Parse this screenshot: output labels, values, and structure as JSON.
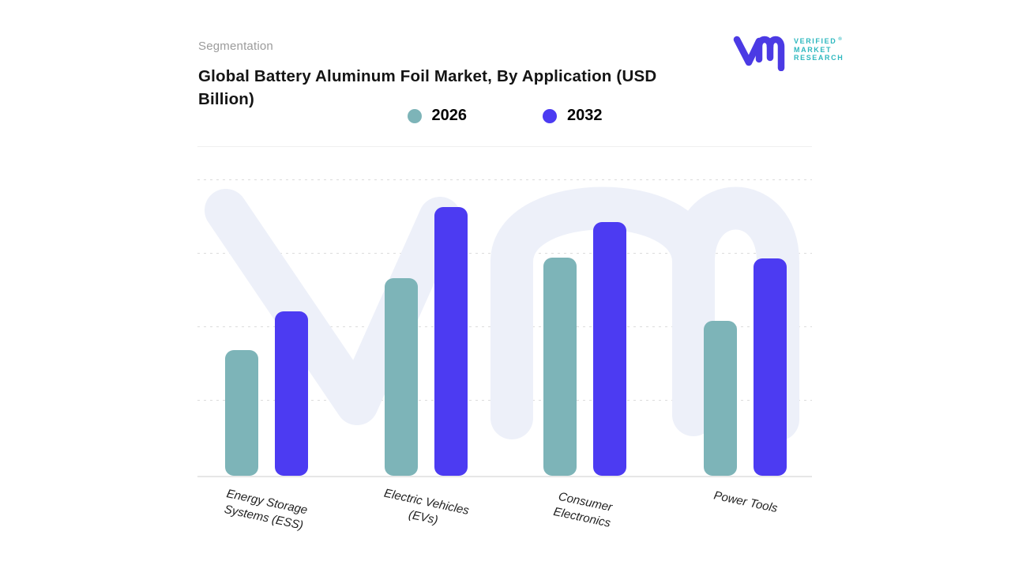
{
  "header": {
    "eyebrow": "Segmentation",
    "title": "Global Battery Aluminum Foil Market, By Application (USD Billion)"
  },
  "logo": {
    "mark": "vm-monogram",
    "lines": [
      "VERIFIED",
      "MARKET",
      "RESEARCH"
    ],
    "registered_symbol": "®",
    "mark_color": "#4b3ae4",
    "text_color": "#2eb8bf"
  },
  "chart_data": {
    "type": "bar",
    "title": "Global Battery Aluminum Foil Market, By Application (USD Billion)",
    "categories": [
      "Energy Storage Systems (ESS)",
      "Electric Vehicles (EVs)",
      "Consumer Electronics",
      "Power Tools"
    ],
    "series": [
      {
        "name": "2026",
        "color": "#7db4b8",
        "values": [
          1.7,
          2.67,
          2.95,
          2.1
        ]
      },
      {
        "name": "2032",
        "color": "#4c3bf2",
        "values": [
          2.22,
          3.64,
          3.43,
          2.94
        ]
      }
    ],
    "xlabel": "",
    "ylabel": "",
    "ylim": [
      0,
      4
    ],
    "y_axis_labels_visible": false,
    "value_scale_note": "no numeric axis labels shown; values estimated in gridline units (4 dotted gridlines above baseline)",
    "grid": "horizontal dotted",
    "legend_position": "top-center",
    "watermark": "large light-lavender vm monogram behind bars"
  },
  "colors": {
    "series_2026": "#7db4b8",
    "series_2032": "#4c3bf2",
    "watermark": "#edf0f9",
    "gridline": "#dcdcdc",
    "baseline": "#e6e6e6",
    "eyebrow_text": "#9b9b9b",
    "title_text": "#141414"
  }
}
